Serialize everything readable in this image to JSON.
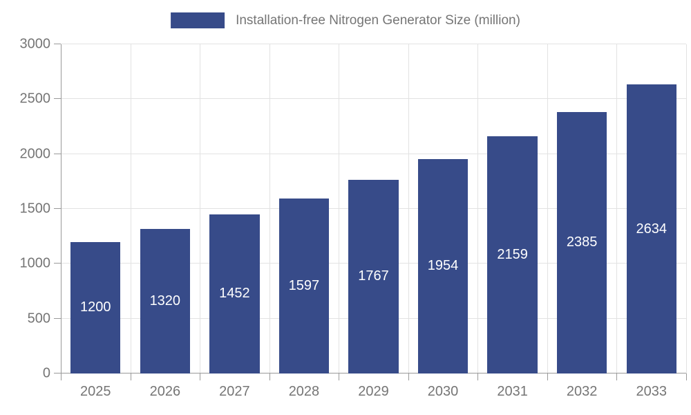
{
  "chart_data": {
    "type": "bar",
    "title": "",
    "legend": "Installation-free Nitrogen Generator Size (million)",
    "legend_position": "top-center",
    "categories": [
      "2025",
      "2026",
      "2027",
      "2028",
      "2029",
      "2030",
      "2031",
      "2032",
      "2033"
    ],
    "series": [
      {
        "name": "Installation-free Nitrogen Generator Size (million)",
        "values": [
          1200,
          1320,
          1452,
          1597,
          1767,
          1954,
          2159,
          2385,
          2634
        ]
      }
    ],
    "xlabel": "",
    "ylabel": "",
    "ylim": [
      0,
      3000
    ],
    "yticks": [
      0,
      500,
      1000,
      1500,
      2000,
      2500,
      3000
    ],
    "grid": "horizontal and vertical light gridlines",
    "value_labels": "white, centered inside bars",
    "colors": {
      "bar": "#374B89",
      "bar_label_text": "#ffffff",
      "axis_text": "#757575",
      "axis_line": "#999999",
      "gridline": "#e2e2e2",
      "background": "#ffffff"
    }
  }
}
